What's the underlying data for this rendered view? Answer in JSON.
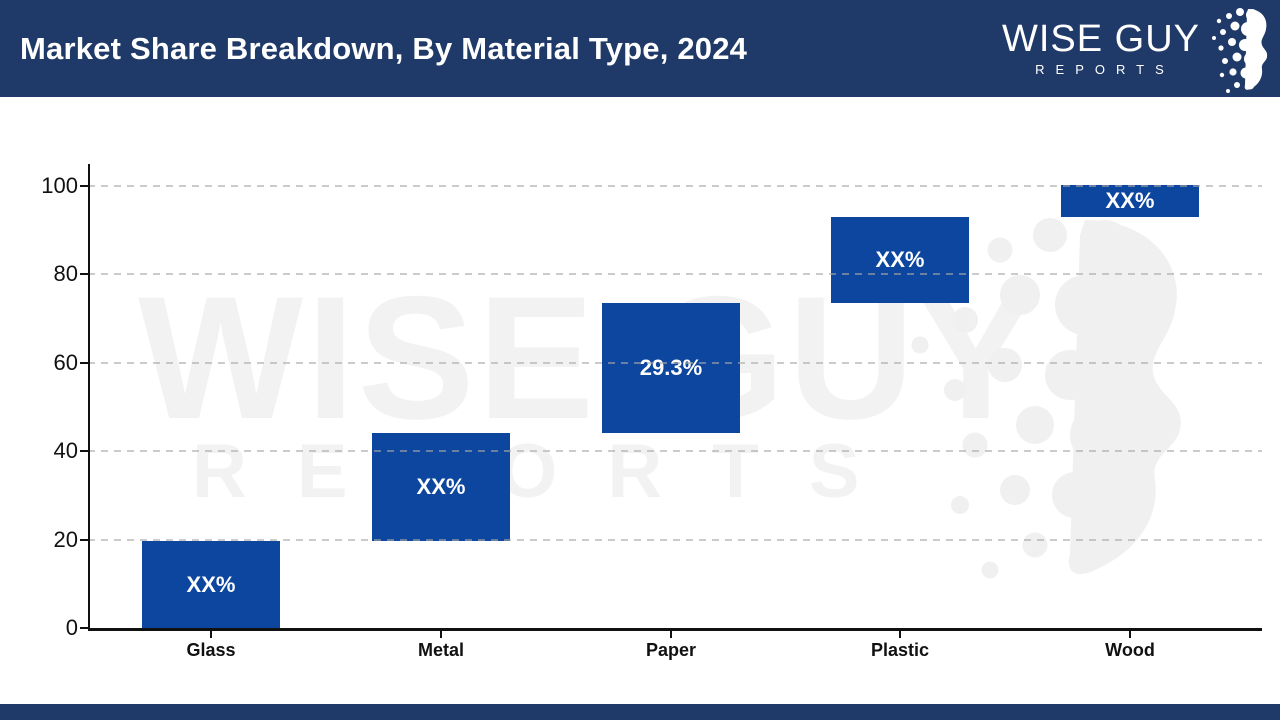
{
  "theme": {
    "header_bg": "#1f3a68",
    "bar_color": "#0c469e",
    "bar_label_color": "#ffffff",
    "grid_color": "#c9c9c9",
    "axis_color": "#111111",
    "watermark_color": "#f2f2f2"
  },
  "header": {
    "title": "Market Share Breakdown, By Material Type, 2024",
    "logo": {
      "line1": "WISE GUY",
      "line2": "REPORTS"
    }
  },
  "watermark": {
    "line1": "WISE GUY",
    "line2": "REPORTS"
  },
  "chart_data": {
    "type": "bar",
    "subtype": "waterfall",
    "title": "Market Share Breakdown, By Material Type, 2024",
    "categories": [
      "Glass",
      "Metal",
      "Paper",
      "Plastic",
      "Wood"
    ],
    "segments": [
      {
        "category": "Glass",
        "start": 0,
        "end": 19.6,
        "label": "XX%"
      },
      {
        "category": "Metal",
        "start": 19.6,
        "end": 44.2,
        "label": "XX%"
      },
      {
        "category": "Paper",
        "start": 44.2,
        "end": 73.5,
        "label": "29.3%"
      },
      {
        "category": "Plastic",
        "start": 73.5,
        "end": 92.9,
        "label": "XX%"
      },
      {
        "category": "Wood",
        "start": 92.9,
        "end": 100.2,
        "label": "XX%"
      }
    ],
    "xlabel": "",
    "ylabel": "",
    "yticks": [
      0,
      20,
      40,
      60,
      80,
      100
    ],
    "ylim": [
      0,
      105
    ],
    "grid": "horizontal-dashed",
    "legend": "none"
  }
}
